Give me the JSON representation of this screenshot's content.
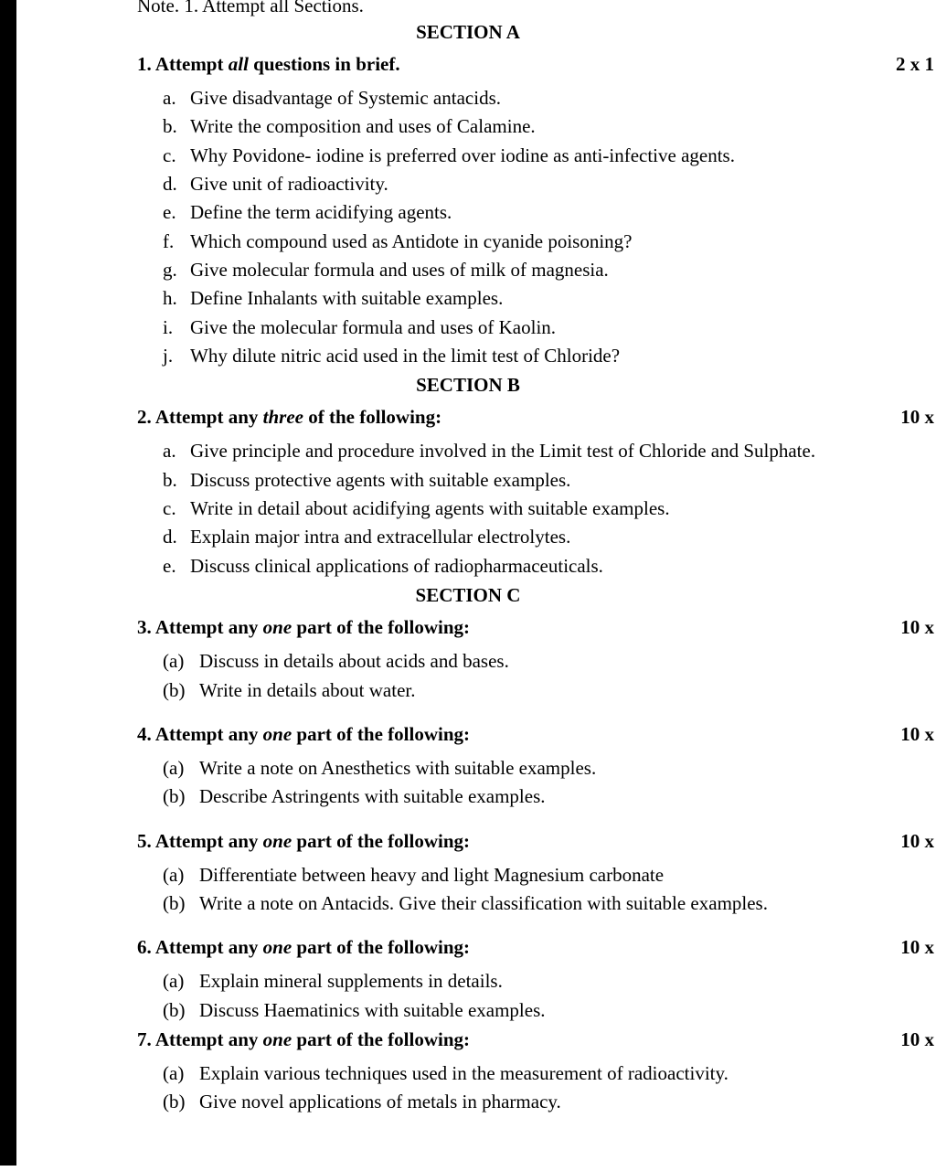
{
  "note_line": "Note.  1. Attempt all Sections.",
  "sectionA": {
    "title": "SECTION A"
  },
  "q1": {
    "num": "1.",
    "prefix": "Attempt ",
    "em": "all",
    "suffix": " questions in brief.",
    "marks": "2 x 1",
    "items": [
      {
        "lbl": "a.",
        "text": "Give disadvantage of Systemic antacids."
      },
      {
        "lbl": "b.",
        "text": "Write the composition and uses of Calamine."
      },
      {
        "lbl": "c.",
        "text": "Why Povidone- iodine is preferred over iodine as anti-infective agents."
      },
      {
        "lbl": "d.",
        "text": "Give unit of radioactivity."
      },
      {
        "lbl": "e.",
        "text": "Define the term acidifying agents."
      },
      {
        "lbl": "f.",
        "text": "Which compound used as Antidote in cyanide poisoning?"
      },
      {
        "lbl": "g.",
        "text": "Give molecular formula and uses of milk of magnesia."
      },
      {
        "lbl": "h.",
        "text": "Define Inhalants with suitable examples."
      },
      {
        "lbl": "i.",
        "text": "Give the molecular formula and uses of Kaolin."
      },
      {
        "lbl": "j.",
        "text": "Why dilute nitric acid used in the limit test of Chloride?"
      }
    ]
  },
  "sectionB": {
    "title": "SECTION B"
  },
  "q2": {
    "num": "2.",
    "prefix": "Attempt any ",
    "em": "three",
    "suffix": " of the following:",
    "marks": "10 x ",
    "items": [
      {
        "lbl": "a.",
        "text": "Give principle and procedure involved in the Limit test of Chloride and Sulphate."
      },
      {
        "lbl": "b.",
        "text": "Discuss protective agents with suitable examples."
      },
      {
        "lbl": "c.",
        "text": "Write in detail about acidifying agents with suitable examples."
      },
      {
        "lbl": "d.",
        "text": "Explain major intra and extracellular electrolytes."
      },
      {
        "lbl": "e.",
        "text": "Discuss clinical applications of radiopharmaceuticals."
      }
    ]
  },
  "sectionC": {
    "title": "SECTION C"
  },
  "q3": {
    "num": "3.",
    "prefix": "Attempt any ",
    "em": "one",
    "suffix": " part of the following:",
    "marks": "10 x",
    "items": [
      {
        "lbl": "(a)",
        "text": "Discuss in details about acids and bases."
      },
      {
        "lbl": "(b)",
        "text": "Write in details about water."
      }
    ]
  },
  "q4": {
    "num": "4.",
    "prefix": "Attempt any ",
    "em": "one",
    "suffix": " part of the following:",
    "marks": "10 x",
    "items": [
      {
        "lbl": "(a)",
        "text": "Write a note on Anesthetics with suitable examples."
      },
      {
        "lbl": "(b)",
        "text": "Describe Astringents with suitable examples."
      }
    ]
  },
  "q5": {
    "num": "5.",
    "prefix": "Attempt any ",
    "em": "one",
    "suffix": " part of the following:",
    "marks": "10 x",
    "items": [
      {
        "lbl": "(a)",
        "text": "Differentiate between heavy and light Magnesium carbonate"
      },
      {
        "lbl": "(b)",
        "text": "Write a note on Antacids. Give their classification with suitable examples."
      }
    ]
  },
  "q6": {
    "num": "6.",
    "prefix": "Attempt any ",
    "em": "one",
    "suffix": " part of the following:",
    "marks": "10 x",
    "items": [
      {
        "lbl": "(a)",
        "text": "Explain mineral supplements in details."
      },
      {
        "lbl": "(b)",
        "text": "Discuss Haematinics with suitable examples."
      }
    ]
  },
  "q7": {
    "num": "7.",
    "prefix": "Attempt any ",
    "em": "one",
    "suffix": " part of the following:",
    "marks": "10 x",
    "items": [
      {
        "lbl": "(a)",
        "text": "Explain various techniques used in the measurement of radioactivity."
      },
      {
        "lbl": "(b)",
        "text": "Give novel applications of metals in pharmacy."
      }
    ]
  }
}
